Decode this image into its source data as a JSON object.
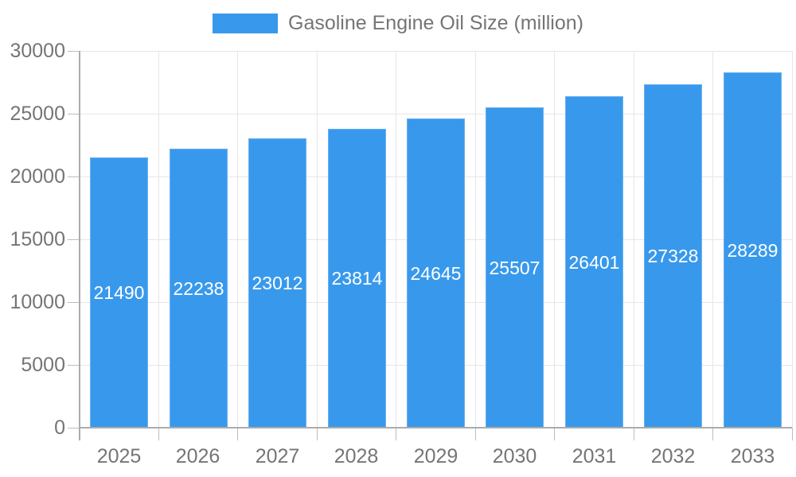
{
  "chart_data": {
    "type": "bar",
    "title": "",
    "categories": [
      "2025",
      "2026",
      "2027",
      "2028",
      "2029",
      "2030",
      "2031",
      "2032",
      "2033"
    ],
    "series": [
      {
        "name": "Gasoline Engine Oil Size (million)",
        "values": [
          21490,
          22238,
          23012,
          23814,
          24645,
          25507,
          26401,
          27328,
          28289
        ]
      }
    ],
    "xlabel": "",
    "ylabel": "",
    "ylim": [
      0,
      30000
    ],
    "ytick_step": 5000,
    "ytick_labels": [
      "0",
      "5000",
      "10000",
      "15000",
      "20000",
      "25000",
      "30000"
    ],
    "grid": "on",
    "legend_position": "top-center",
    "bar_labels_inside": true,
    "colors": {
      "bar_fill": "#3899EC",
      "bar_border": "#6AB0F0",
      "bar_label_text": "#FFFFFF",
      "axis_text": "#757575",
      "grid_line": "#E6E6E6",
      "axis_line": "#ACACAC",
      "tick_line": "#BDBDBD",
      "background": "#FFFFFF"
    }
  }
}
